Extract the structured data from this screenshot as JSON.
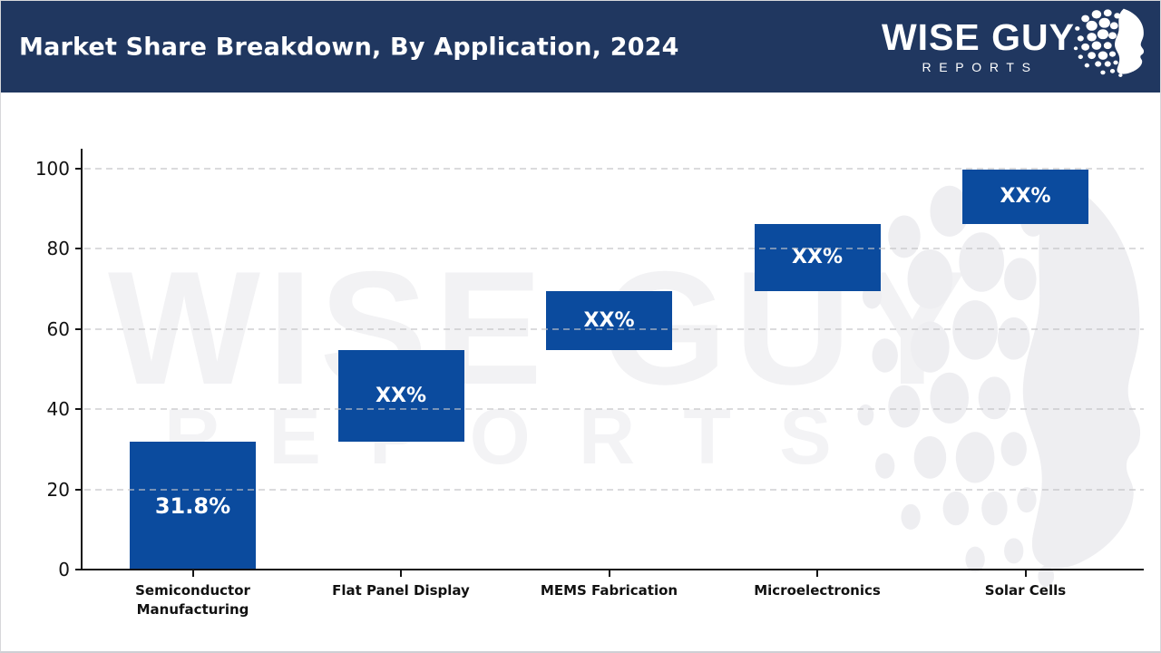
{
  "header": {
    "title": "Market Share Breakdown, By Application, 2024",
    "logo": {
      "line1": "WISE GUY",
      "line2": "REPORTS"
    },
    "bg_color": "#203760"
  },
  "watermark": {
    "line1": "WISE GUY",
    "line2": "REPORTS"
  },
  "chart_data": {
    "type": "bar",
    "subtype": "waterfall",
    "title": "Market Share Breakdown, By Application, 2024",
    "categories": [
      "Semiconductor Manufacturing",
      "Flat Panel Display",
      "MEMS Fabrication",
      "Microelectronics",
      "Solar Cells"
    ],
    "segments": [
      {
        "category": "Semiconductor Manufacturing",
        "start": 0,
        "end": 31.8,
        "label": "31.8%"
      },
      {
        "category": "Flat Panel Display",
        "start": 31.8,
        "end": 54.8,
        "label": "XX%"
      },
      {
        "category": "MEMS Fabrication",
        "start": 54.8,
        "end": 69.5,
        "label": "XX%"
      },
      {
        "category": "Microelectronics",
        "start": 69.5,
        "end": 86.3,
        "label": "XX%"
      },
      {
        "category": "Solar Cells",
        "start": 86.3,
        "end": 99.8,
        "label": "XX%"
      }
    ],
    "y_ticks": [
      0,
      20,
      40,
      60,
      80,
      100
    ],
    "ylim": [
      0,
      105
    ],
    "xlabel": "",
    "ylabel": "",
    "bar_color": "#0b4b9e",
    "grid": "dashed-horizontal",
    "legend": "none"
  }
}
